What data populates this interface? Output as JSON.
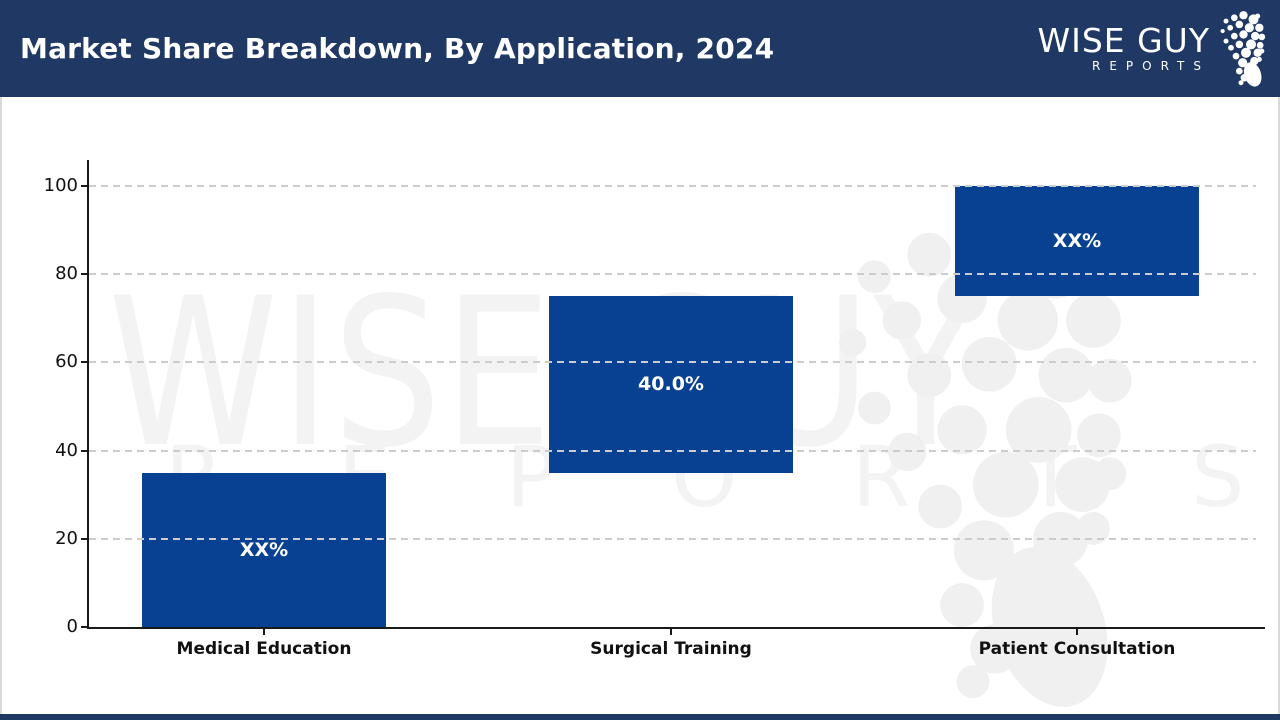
{
  "header": {
    "title": "Market Share Breakdown, By Application, 2024",
    "logo_line1": "WISE GUY",
    "logo_line2": "REPORTS"
  },
  "watermark": {
    "line1": "WISE GUY",
    "line2": "R E P O R T S"
  },
  "chart_data": {
    "type": "bar",
    "subtype": "floating-segment-waterfall",
    "title": "Market Share Breakdown, By Application, 2024",
    "categories": [
      "Medical Education",
      "Surgical Training",
      "Patient Consultation"
    ],
    "segments": [
      {
        "category": "Medical Education",
        "start": 0,
        "end": 35,
        "label": "XX%"
      },
      {
        "category": "Surgical Training",
        "start": 35,
        "end": 75,
        "label": "40.0%"
      },
      {
        "category": "Patient Consultation",
        "start": 75,
        "end": 100,
        "label": "XX%"
      }
    ],
    "yticks": [
      0,
      20,
      40,
      60,
      80,
      100
    ],
    "ylim": [
      0,
      105
    ],
    "xlabel": "",
    "ylabel": "",
    "grid": "dashed-horizontal",
    "legend": "none",
    "bar_color": "#084192",
    "value_label_color": "#ffffff"
  },
  "colors": {
    "header_bg": "#1f3864",
    "footer_bg": "#1f3864",
    "bar": "#084192",
    "gridline": "#cccccc",
    "watermark": "#f3f3f3"
  }
}
